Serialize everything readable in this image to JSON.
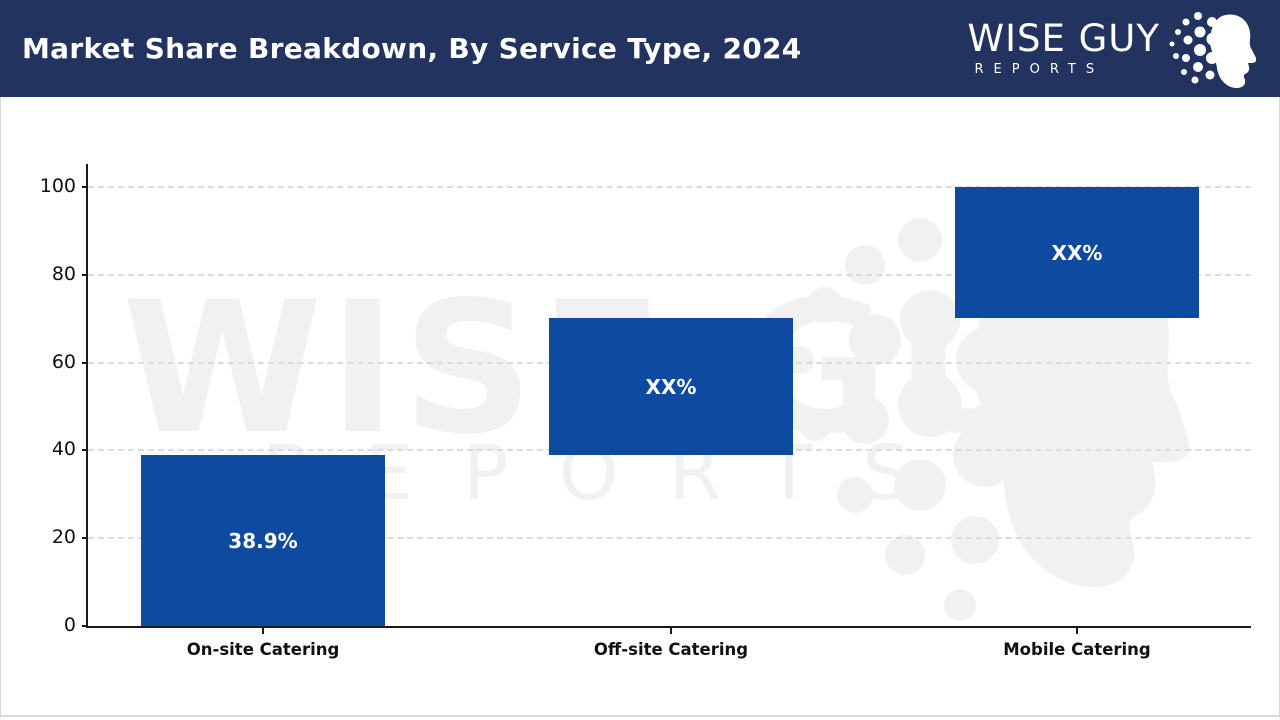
{
  "header": {
    "title": "Market Share Breakdown, By Service Type, 2024",
    "logo": {
      "line1": "WISE GUY",
      "line2": "REPORTS"
    }
  },
  "watermark": {
    "line1": "WISE GUY",
    "line2": "REPORTS"
  },
  "colors": {
    "header_bg": "#22335f",
    "bar": "#0d4aa0",
    "bar_label": "#ffffff",
    "grid": "#dcdcdc",
    "axis": "#1a1a1a",
    "watermark": "#f1f1f2"
  },
  "chart_data": {
    "type": "bar",
    "subtype": "waterfall",
    "title": "Market Share Breakdown, By Service Type, 2024",
    "categories": [
      "On-site Catering",
      "Off-site Catering",
      "Mobile Catering"
    ],
    "segments": [
      {
        "category": "On-site Catering",
        "start": 0,
        "end": 38.9,
        "label": "38.9%"
      },
      {
        "category": "Off-site Catering",
        "start": 38.9,
        "end": 70.1,
        "label": "XX%"
      },
      {
        "category": "Mobile Catering",
        "start": 70.1,
        "end": 100,
        "label": "XX%"
      }
    ],
    "xlabel": "",
    "ylabel": "",
    "ylim": [
      0,
      105
    ],
    "y_ticks": [
      0,
      20,
      40,
      60,
      80,
      100
    ],
    "grid": "horizontal-dashed",
    "legend": "none"
  }
}
